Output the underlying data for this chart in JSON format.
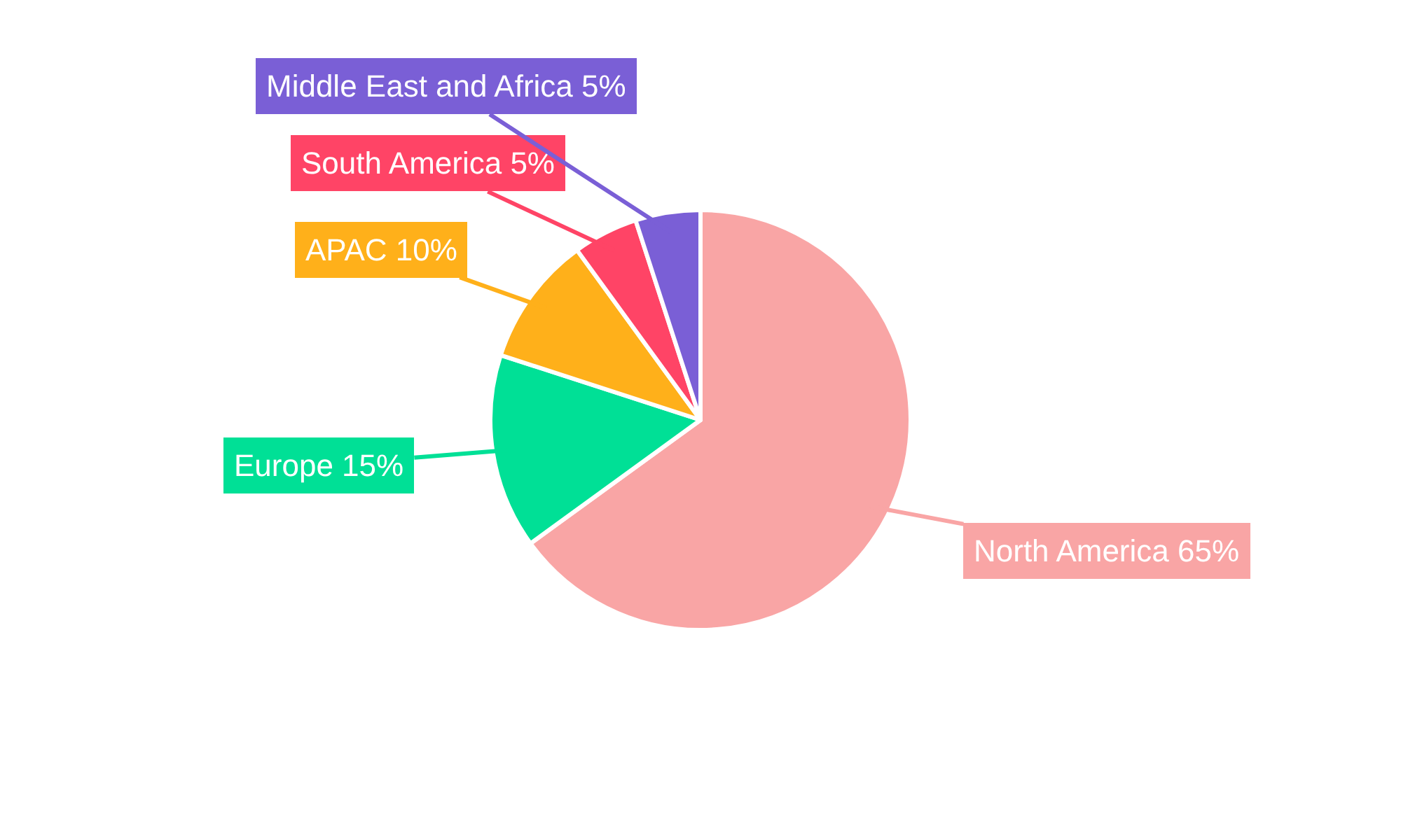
{
  "chart_data": {
    "type": "pie",
    "categories": [
      "North America",
      "Europe",
      "APAC",
      "South America",
      "Middle East and Africa"
    ],
    "values": [
      65,
      15,
      10,
      5,
      5
    ],
    "value_labels": [
      "65%",
      "15%",
      "10%",
      "5%",
      "5%"
    ],
    "colors": [
      "#f9a5a5",
      "#00e096",
      "#ffb01a",
      "#ff4466",
      "#7a5fd6"
    ],
    "legend": false
  }
}
